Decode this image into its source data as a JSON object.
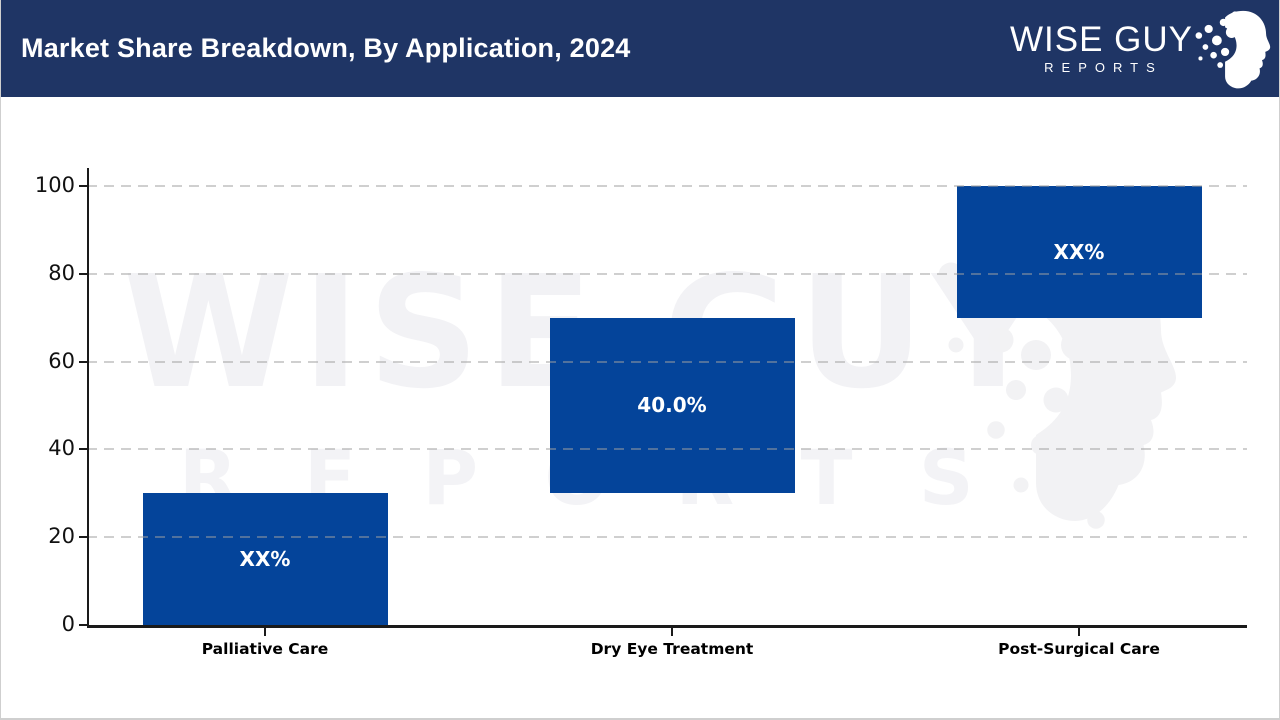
{
  "header": {
    "title": "Market Share Breakdown, By Application, 2024",
    "logo": {
      "name": "WISE GUY",
      "tagline": "REPORTS"
    }
  },
  "watermark": {
    "line1": "WISE GUY",
    "line2": "R E P O R T S"
  },
  "chart_data": {
    "type": "bar",
    "subtype": "floating-column (waterfall-style market share)",
    "title": "Market Share Breakdown, By Application, 2024",
    "categories": [
      "Palliative Care",
      "Dry Eye Treatment",
      "Post-Surgical Care"
    ],
    "bars": [
      {
        "category": "Palliative Care",
        "start": 0,
        "end": 30,
        "label": "XX%"
      },
      {
        "category": "Dry Eye Treatment",
        "start": 30,
        "end": 70,
        "label": "40.0%"
      },
      {
        "category": "Post-Surgical Care",
        "start": 70,
        "end": 100,
        "label": "XX%"
      }
    ],
    "yticks": [
      0,
      20,
      40,
      60,
      80,
      100
    ],
    "ylim": [
      0,
      105
    ],
    "xlabel": "",
    "ylabel": "",
    "grid": "horizontal dashed, drawn over bars",
    "legend": "none",
    "bar_color": "#04449a",
    "value_label_color": "#ffffff",
    "axis_color": "#1a1a1a",
    "header_color": "#1f3565"
  }
}
